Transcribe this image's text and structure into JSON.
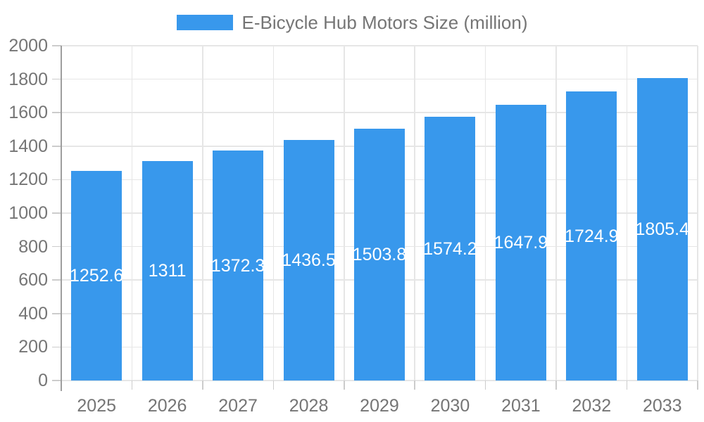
{
  "legend": {
    "label": "E-Bicycle Hub Motors Size (million)"
  },
  "colors": {
    "bar": "#3898ec",
    "bar_label_text": "#ffffff",
    "axis_text": "#757575",
    "gridline": "#e6e6e6",
    "tick": "#cccccc",
    "axis_line": "#9e9e9e",
    "background": "#ffffff"
  },
  "chart_data": {
    "type": "bar",
    "title": "E-Bicycle Hub Motors Size (million)",
    "categories": [
      "2025",
      "2026",
      "2027",
      "2028",
      "2029",
      "2030",
      "2031",
      "2032",
      "2033"
    ],
    "series": [
      {
        "name": "E-Bicycle Hub Motors Size (million)",
        "values": [
          1252.6,
          1311,
          1372.3,
          1436.5,
          1503.8,
          1574.2,
          1647.9,
          1724.9,
          1805.4
        ]
      }
    ],
    "bar_labels": [
      "1252.6",
      "1311",
      "1372.3",
      "1436.5",
      "1503.8",
      "1574.2",
      "1647.9",
      "1724.9",
      "1805.4"
    ],
    "xlabel": "",
    "ylabel": "",
    "ylim": [
      0,
      2000
    ],
    "yticks": [
      0,
      200,
      400,
      600,
      800,
      1000,
      1200,
      1400,
      1600,
      1800,
      2000
    ],
    "grid": true,
    "legend_position": "top"
  }
}
